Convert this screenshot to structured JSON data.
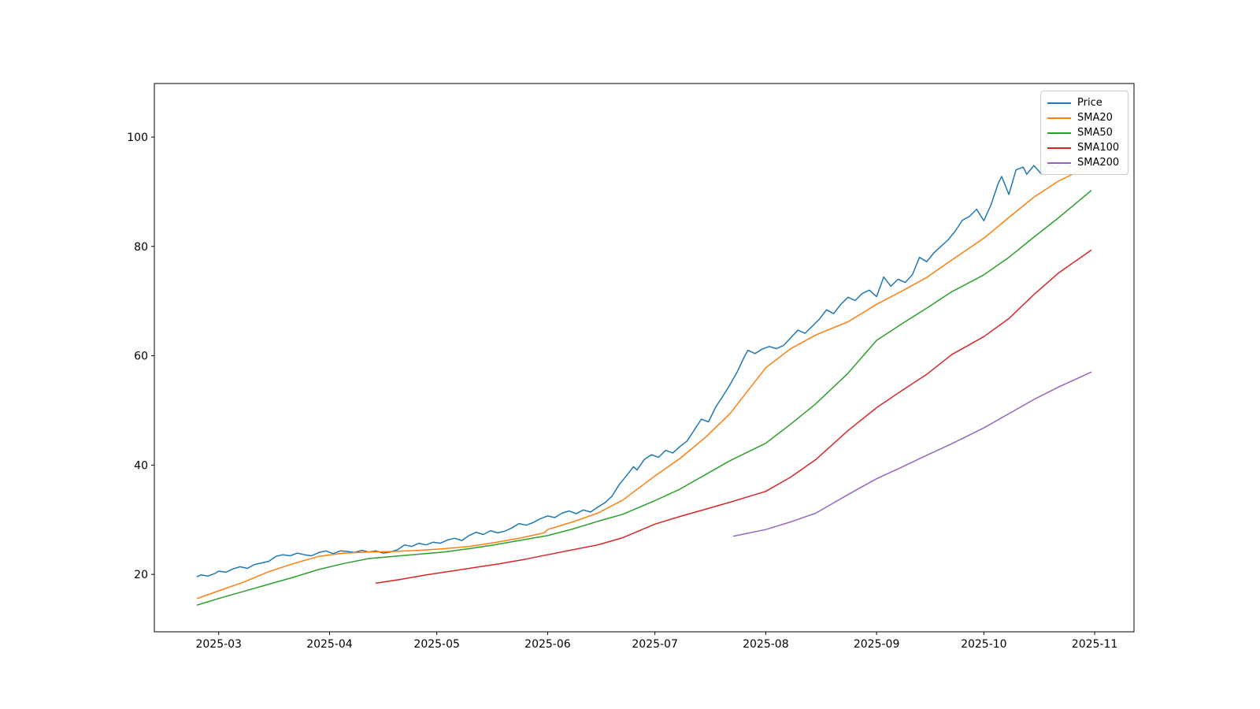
{
  "figure": {
    "background": "#ffffff"
  },
  "chart_data": {
    "type": "line",
    "title": "",
    "xlabel": "",
    "ylabel": "",
    "grid": false,
    "legend": {
      "position": "upper right",
      "entries": [
        "Price",
        "SMA20",
        "SMA50",
        "SMA100",
        "SMA200"
      ]
    },
    "x_axis": {
      "domain": [
        "2025-02-11",
        "2025-11-12"
      ],
      "tick_dates": [
        "2025-03-01",
        "2025-04-01",
        "2025-05-01",
        "2025-06-01",
        "2025-07-01",
        "2025-08-01",
        "2025-09-01",
        "2025-10-01",
        "2025-11-01"
      ],
      "tick_labels": [
        "2025-03",
        "2025-04",
        "2025-05",
        "2025-06",
        "2025-07",
        "2025-08",
        "2025-09",
        "2025-10",
        "2025-11"
      ]
    },
    "y_axis": {
      "domain": [
        9.5,
        109.8
      ],
      "ticks": [
        20,
        40,
        60,
        80,
        100
      ],
      "tick_labels": [
        "20",
        "40",
        "60",
        "80",
        "100"
      ]
    },
    "series": [
      {
        "name": "Price",
        "color": "#1f77b4",
        "linewidth": 1.5,
        "points": [
          [
            "2025-02-23",
            19.6
          ],
          [
            "2025-02-24",
            19.9
          ],
          [
            "2025-02-26",
            19.7
          ],
          [
            "2025-02-28",
            20.2
          ],
          [
            "2025-03-01",
            20.6
          ],
          [
            "2025-03-03",
            20.4
          ],
          [
            "2025-03-05",
            21.0
          ],
          [
            "2025-03-07",
            21.4
          ],
          [
            "2025-03-09",
            21.1
          ],
          [
            "2025-03-11",
            21.8
          ],
          [
            "2025-03-13",
            22.1
          ],
          [
            "2025-03-15",
            22.4
          ],
          [
            "2025-03-17",
            23.3
          ],
          [
            "2025-03-19",
            23.6
          ],
          [
            "2025-03-21",
            23.4
          ],
          [
            "2025-03-23",
            23.9
          ],
          [
            "2025-03-25",
            23.6
          ],
          [
            "2025-03-27",
            23.4
          ],
          [
            "2025-03-29",
            24.0
          ],
          [
            "2025-03-31",
            24.3
          ],
          [
            "2025-04-02",
            23.8
          ],
          [
            "2025-04-04",
            24.3
          ],
          [
            "2025-04-06",
            24.2
          ],
          [
            "2025-04-08",
            24.0
          ],
          [
            "2025-04-10",
            24.4
          ],
          [
            "2025-04-12",
            24.1
          ],
          [
            "2025-04-14",
            24.3
          ],
          [
            "2025-04-16",
            23.9
          ],
          [
            "2025-04-18",
            24.1
          ],
          [
            "2025-04-20",
            24.5
          ],
          [
            "2025-04-22",
            25.4
          ],
          [
            "2025-04-24",
            25.1
          ],
          [
            "2025-04-26",
            25.7
          ],
          [
            "2025-04-28",
            25.4
          ],
          [
            "2025-04-30",
            25.9
          ],
          [
            "2025-05-02",
            25.7
          ],
          [
            "2025-05-04",
            26.3
          ],
          [
            "2025-05-06",
            26.6
          ],
          [
            "2025-05-08",
            26.2
          ],
          [
            "2025-05-10",
            27.1
          ],
          [
            "2025-05-12",
            27.7
          ],
          [
            "2025-05-14",
            27.3
          ],
          [
            "2025-05-16",
            28.0
          ],
          [
            "2025-05-18",
            27.6
          ],
          [
            "2025-05-20",
            27.9
          ],
          [
            "2025-05-22",
            28.5
          ],
          [
            "2025-05-24",
            29.3
          ],
          [
            "2025-05-26",
            29.0
          ],
          [
            "2025-05-28",
            29.5
          ],
          [
            "2025-05-30",
            30.2
          ],
          [
            "2025-06-01",
            30.7
          ],
          [
            "2025-06-03",
            30.4
          ],
          [
            "2025-06-05",
            31.2
          ],
          [
            "2025-06-07",
            31.6
          ],
          [
            "2025-06-09",
            31.1
          ],
          [
            "2025-06-11",
            31.8
          ],
          [
            "2025-06-13",
            31.4
          ],
          [
            "2025-06-15",
            32.3
          ],
          [
            "2025-06-17",
            33.1
          ],
          [
            "2025-06-19",
            34.3
          ],
          [
            "2025-06-21",
            36.4
          ],
          [
            "2025-06-23",
            38.0
          ],
          [
            "2025-06-25",
            39.7
          ],
          [
            "2025-06-26",
            39.1
          ],
          [
            "2025-06-28",
            41.0
          ],
          [
            "2025-06-30",
            41.9
          ],
          [
            "2025-07-02",
            41.4
          ],
          [
            "2025-07-04",
            42.7
          ],
          [
            "2025-07-06",
            42.2
          ],
          [
            "2025-07-08",
            43.4
          ],
          [
            "2025-07-10",
            44.4
          ],
          [
            "2025-07-12",
            46.4
          ],
          [
            "2025-07-14",
            48.4
          ],
          [
            "2025-07-16",
            47.9
          ],
          [
            "2025-07-18",
            50.6
          ],
          [
            "2025-07-20",
            52.6
          ],
          [
            "2025-07-22",
            54.7
          ],
          [
            "2025-07-24",
            57.0
          ],
          [
            "2025-07-26",
            59.8
          ],
          [
            "2025-07-27",
            61.0
          ],
          [
            "2025-07-29",
            60.4
          ],
          [
            "2025-07-31",
            61.2
          ],
          [
            "2025-08-02",
            61.7
          ],
          [
            "2025-08-04",
            61.3
          ],
          [
            "2025-08-06",
            61.9
          ],
          [
            "2025-08-08",
            63.3
          ],
          [
            "2025-08-10",
            64.7
          ],
          [
            "2025-08-12",
            64.1
          ],
          [
            "2025-08-14",
            65.4
          ],
          [
            "2025-08-16",
            66.7
          ],
          [
            "2025-08-18",
            68.4
          ],
          [
            "2025-08-20",
            67.7
          ],
          [
            "2025-08-22",
            69.4
          ],
          [
            "2025-08-24",
            70.7
          ],
          [
            "2025-08-26",
            70.1
          ],
          [
            "2025-08-28",
            71.4
          ],
          [
            "2025-08-30",
            72.0
          ],
          [
            "2025-09-01",
            70.8
          ],
          [
            "2025-09-03",
            74.4
          ],
          [
            "2025-09-05",
            72.7
          ],
          [
            "2025-09-07",
            74.0
          ],
          [
            "2025-09-09",
            73.4
          ],
          [
            "2025-09-11",
            74.8
          ],
          [
            "2025-09-13",
            78.0
          ],
          [
            "2025-09-15",
            77.2
          ],
          [
            "2025-09-17",
            78.8
          ],
          [
            "2025-09-19",
            80.0
          ],
          [
            "2025-09-21",
            81.2
          ],
          [
            "2025-09-23",
            82.8
          ],
          [
            "2025-09-25",
            84.8
          ],
          [
            "2025-09-27",
            85.5
          ],
          [
            "2025-09-29",
            86.8
          ],
          [
            "2025-10-01",
            84.7
          ],
          [
            "2025-10-03",
            87.6
          ],
          [
            "2025-10-05",
            91.5
          ],
          [
            "2025-10-06",
            92.8
          ],
          [
            "2025-10-08",
            89.5
          ],
          [
            "2025-10-10",
            94.0
          ],
          [
            "2025-10-12",
            94.5
          ],
          [
            "2025-10-13",
            93.2
          ],
          [
            "2025-10-15",
            94.8
          ],
          [
            "2025-10-17",
            93.3
          ],
          [
            "2025-10-19",
            95.0
          ],
          [
            "2025-10-21",
            94.3
          ],
          [
            "2025-10-23",
            95.4
          ],
          [
            "2025-10-25",
            94.6
          ],
          [
            "2025-10-27",
            95.2
          ],
          [
            "2025-10-29",
            94.8
          ],
          [
            "2025-10-31",
            95.6
          ]
        ]
      },
      {
        "name": "SMA20",
        "color": "#ff7f0e",
        "linewidth": 1.5,
        "points": [
          [
            "2025-02-23",
            15.6
          ],
          [
            "2025-03-01",
            17.0
          ],
          [
            "2025-03-08",
            18.6
          ],
          [
            "2025-03-15",
            20.5
          ],
          [
            "2025-03-22",
            22.0
          ],
          [
            "2025-03-29",
            23.3
          ],
          [
            "2025-04-05",
            23.9
          ],
          [
            "2025-04-12",
            24.1
          ],
          [
            "2025-04-19",
            24.2
          ],
          [
            "2025-04-26",
            24.4
          ],
          [
            "2025-05-03",
            24.7
          ],
          [
            "2025-05-10",
            25.1
          ],
          [
            "2025-05-17",
            25.8
          ],
          [
            "2025-05-24",
            26.6
          ],
          [
            "2025-05-31",
            27.6
          ],
          [
            "2025-06-01",
            28.2
          ],
          [
            "2025-06-08",
            29.6
          ],
          [
            "2025-06-15",
            31.2
          ],
          [
            "2025-06-22",
            33.6
          ],
          [
            "2025-07-01",
            38.0
          ],
          [
            "2025-07-08",
            41.2
          ],
          [
            "2025-07-15",
            45.0
          ],
          [
            "2025-07-22",
            49.4
          ],
          [
            "2025-08-01",
            57.8
          ],
          [
            "2025-08-08",
            61.3
          ],
          [
            "2025-08-15",
            63.8
          ],
          [
            "2025-08-24",
            66.2
          ],
          [
            "2025-09-01",
            69.4
          ],
          [
            "2025-09-08",
            71.8
          ],
          [
            "2025-09-15",
            74.3
          ],
          [
            "2025-09-22",
            77.5
          ],
          [
            "2025-10-01",
            81.5
          ],
          [
            "2025-10-08",
            85.3
          ],
          [
            "2025-10-15",
            89.0
          ],
          [
            "2025-10-22",
            92.0
          ],
          [
            "2025-10-31",
            94.8
          ]
        ]
      },
      {
        "name": "SMA50",
        "color": "#2ca02c",
        "linewidth": 1.5,
        "points": [
          [
            "2025-02-23",
            14.4
          ],
          [
            "2025-03-01",
            15.6
          ],
          [
            "2025-03-08",
            16.9
          ],
          [
            "2025-03-15",
            18.2
          ],
          [
            "2025-03-22",
            19.5
          ],
          [
            "2025-03-29",
            20.9
          ],
          [
            "2025-04-05",
            22.0
          ],
          [
            "2025-04-12",
            22.9
          ],
          [
            "2025-04-19",
            23.3
          ],
          [
            "2025-04-26",
            23.7
          ],
          [
            "2025-05-03",
            24.1
          ],
          [
            "2025-05-10",
            24.7
          ],
          [
            "2025-05-17",
            25.4
          ],
          [
            "2025-05-24",
            26.2
          ],
          [
            "2025-06-01",
            27.1
          ],
          [
            "2025-06-08",
            28.3
          ],
          [
            "2025-06-15",
            29.7
          ],
          [
            "2025-06-22",
            31.0
          ],
          [
            "2025-07-01",
            33.5
          ],
          [
            "2025-07-08",
            35.6
          ],
          [
            "2025-07-15",
            38.2
          ],
          [
            "2025-07-22",
            40.8
          ],
          [
            "2025-08-01",
            44.0
          ],
          [
            "2025-08-08",
            47.5
          ],
          [
            "2025-08-15",
            51.2
          ],
          [
            "2025-08-24",
            56.8
          ],
          [
            "2025-09-01",
            62.8
          ],
          [
            "2025-09-08",
            65.8
          ],
          [
            "2025-09-15",
            68.7
          ],
          [
            "2025-09-22",
            71.7
          ],
          [
            "2025-10-01",
            74.8
          ],
          [
            "2025-10-08",
            78.0
          ],
          [
            "2025-10-15",
            81.7
          ],
          [
            "2025-10-22",
            85.3
          ],
          [
            "2025-10-31",
            90.2
          ]
        ]
      },
      {
        "name": "SMA100",
        "color": "#d62728",
        "linewidth": 1.5,
        "points": [
          [
            "2025-04-14",
            18.4
          ],
          [
            "2025-04-21",
            19.1
          ],
          [
            "2025-04-28",
            19.9
          ],
          [
            "2025-05-05",
            20.6
          ],
          [
            "2025-05-12",
            21.3
          ],
          [
            "2025-05-19",
            22.0
          ],
          [
            "2025-05-26",
            22.8
          ],
          [
            "2025-06-01",
            23.6
          ],
          [
            "2025-06-08",
            24.5
          ],
          [
            "2025-06-15",
            25.4
          ],
          [
            "2025-06-22",
            26.7
          ],
          [
            "2025-07-01",
            29.2
          ],
          [
            "2025-07-08",
            30.6
          ],
          [
            "2025-07-15",
            31.9
          ],
          [
            "2025-07-22",
            33.2
          ],
          [
            "2025-08-01",
            35.2
          ],
          [
            "2025-08-08",
            37.8
          ],
          [
            "2025-08-15",
            41.0
          ],
          [
            "2025-08-24",
            46.3
          ],
          [
            "2025-09-01",
            50.5
          ],
          [
            "2025-09-08",
            53.6
          ],
          [
            "2025-09-15",
            56.6
          ],
          [
            "2025-09-22",
            60.2
          ],
          [
            "2025-10-01",
            63.5
          ],
          [
            "2025-10-08",
            66.8
          ],
          [
            "2025-10-15",
            71.2
          ],
          [
            "2025-10-22",
            75.2
          ],
          [
            "2025-10-31",
            79.3
          ]
        ]
      },
      {
        "name": "SMA200",
        "color": "#9467bd",
        "linewidth": 1.5,
        "points": [
          [
            "2025-07-23",
            27.0
          ],
          [
            "2025-08-01",
            28.2
          ],
          [
            "2025-08-08",
            29.6
          ],
          [
            "2025-08-15",
            31.2
          ],
          [
            "2025-08-24",
            34.6
          ],
          [
            "2025-09-01",
            37.5
          ],
          [
            "2025-09-08",
            39.6
          ],
          [
            "2025-09-15",
            41.8
          ],
          [
            "2025-09-22",
            43.9
          ],
          [
            "2025-10-01",
            46.8
          ],
          [
            "2025-10-08",
            49.4
          ],
          [
            "2025-10-15",
            52.0
          ],
          [
            "2025-10-22",
            54.3
          ],
          [
            "2025-10-31",
            57.0
          ]
        ]
      }
    ]
  }
}
